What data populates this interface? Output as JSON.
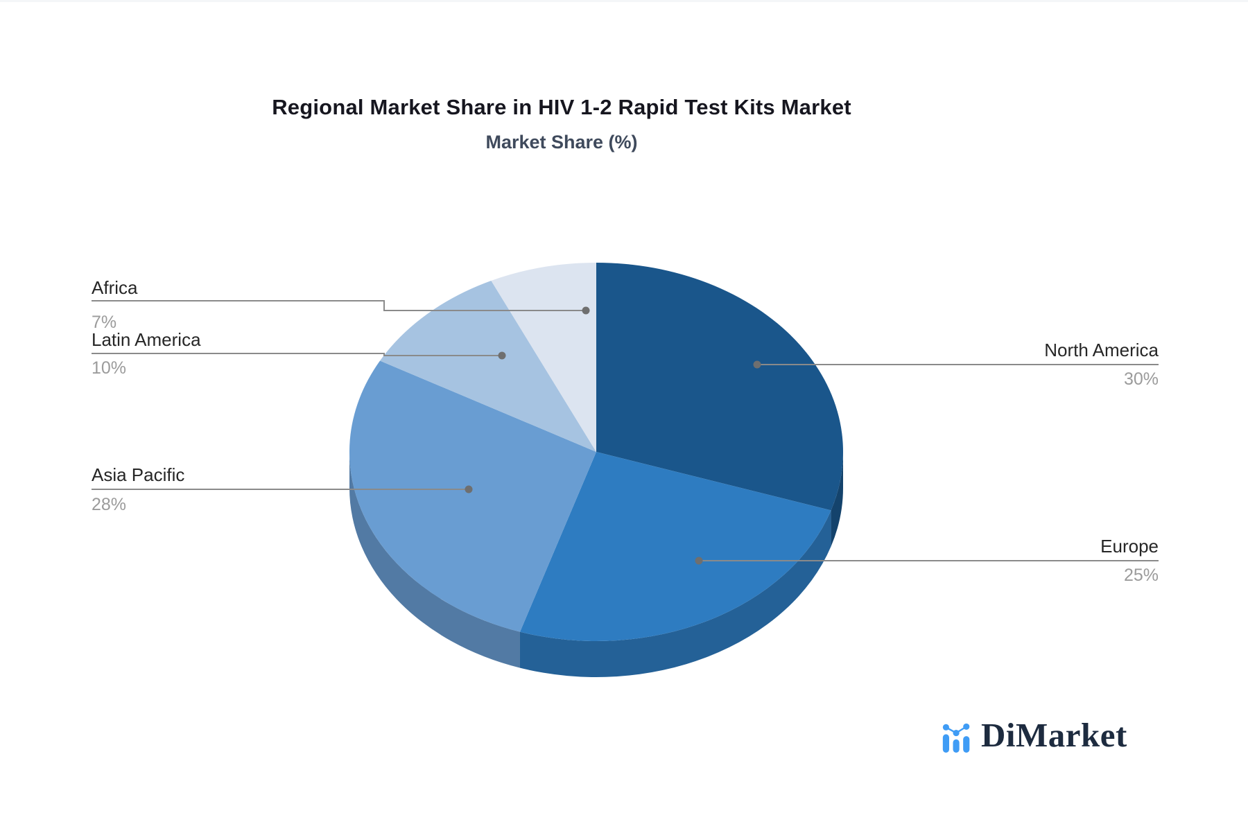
{
  "chart_data": {
    "type": "pie",
    "title": "Regional Market Share in HIV 1-2 Rapid Test Kits Market",
    "subtitle": "Market Share (%)",
    "unit": "%",
    "effect": "3d",
    "start_angle_deg": 0,
    "direction": "clockwise",
    "legend_position": "none",
    "label_style": "callout-leader-lines",
    "slices": [
      {
        "label": "North America",
        "value": 30,
        "display": "30%",
        "color": "#1a568b",
        "callout_side": "right"
      },
      {
        "label": "Europe",
        "value": 25,
        "display": "25%",
        "color": "#2e7cc1",
        "callout_side": "right"
      },
      {
        "label": "Asia Pacific",
        "value": 28,
        "display": "28%",
        "color": "#699dd2",
        "callout_side": "left"
      },
      {
        "label": "Latin America",
        "value": 10,
        "display": "10%",
        "color": "#a6c3e1",
        "callout_side": "left"
      },
      {
        "label": "Africa",
        "value": 7,
        "display": "7%",
        "color": "#dce4f0",
        "callout_side": "left"
      }
    ]
  },
  "branding": {
    "logo_text": "DiMarket",
    "logo_icon": "bar-line-chart-icon",
    "logo_icon_color": "#3f9cf5",
    "logo_text_color": "#1d2b3f"
  },
  "styles": {
    "title_color": "#16161f",
    "subtitle_color": "#3f4a5c",
    "label_color": "#262626",
    "value_color": "#9b9b9b",
    "leader_line_color": "#8a8a8a",
    "leader_dot_color": "#6f6f6f"
  }
}
